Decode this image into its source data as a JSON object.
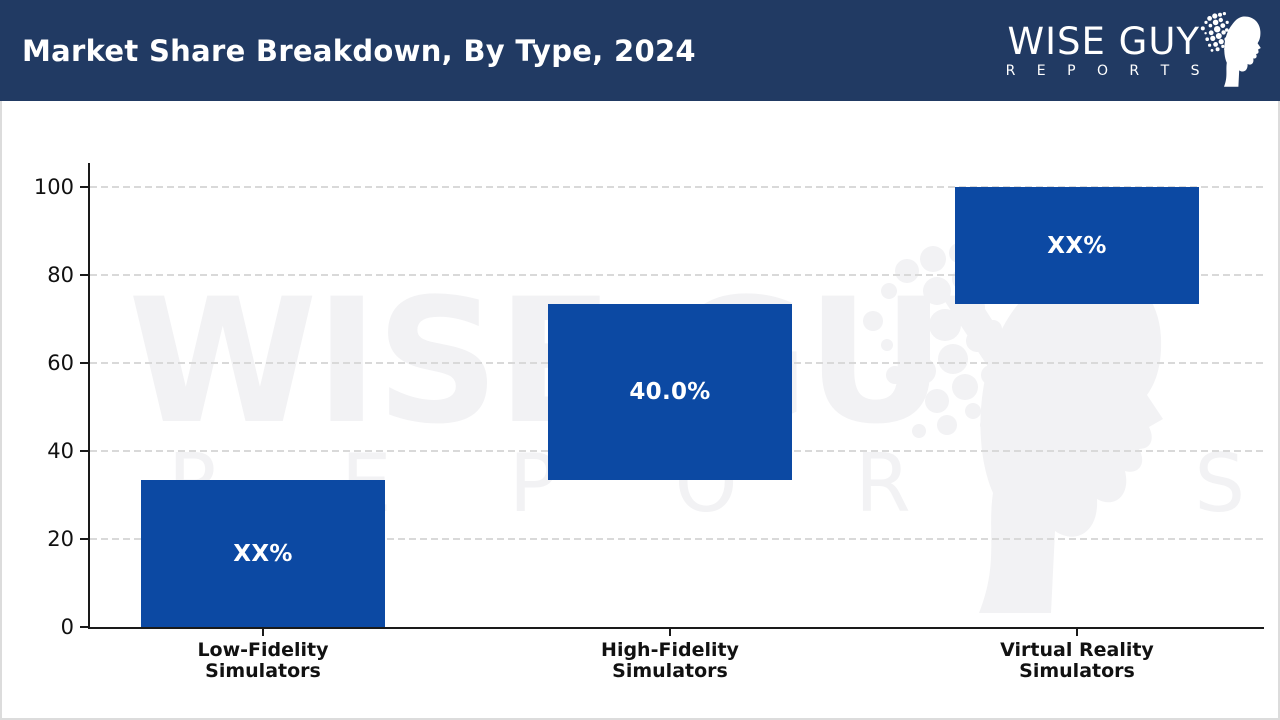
{
  "header": {
    "title": "Market Share Breakdown, By Type, 2024",
    "logo": {
      "line1": "WISE GUY",
      "line2": "R E P O R T S"
    }
  },
  "watermark": {
    "line1": "WISE GUY",
    "line2": "R E P O R T S"
  },
  "chart_data": {
    "type": "bar",
    "subtype": "floating-segment-waterfall",
    "title": "Market Share Breakdown, By Type, 2024",
    "categories": [
      {
        "line1": "Low-Fidelity",
        "line2": "Simulators"
      },
      {
        "line1": "High-Fidelity",
        "line2": "Simulators"
      },
      {
        "line1": "Virtual Reality",
        "line2": "Simulators"
      }
    ],
    "bars": [
      {
        "start": 0,
        "end": 33.4,
        "label": "XX%"
      },
      {
        "start": 33.4,
        "end": 73.4,
        "label": "40.0%"
      },
      {
        "start": 73.4,
        "end": 100,
        "label": "XX%"
      }
    ],
    "xlabel": "",
    "ylabel": "",
    "ylim": [
      0,
      105.5
    ],
    "yticks": [
      0,
      20,
      40,
      60,
      80,
      100
    ],
    "grid": "horizontal-dashed",
    "legend": "none"
  },
  "colors": {
    "header_bg": "#213a63",
    "title_text": "#ffffff",
    "bar": "#0c49a3",
    "bar_label": "#ffffff",
    "grid": "#d9d9d9",
    "axis": "#1a1a1a",
    "tick_label": "#111111",
    "watermark": "#f2f2f4",
    "page_border": "#dcdcdc"
  }
}
